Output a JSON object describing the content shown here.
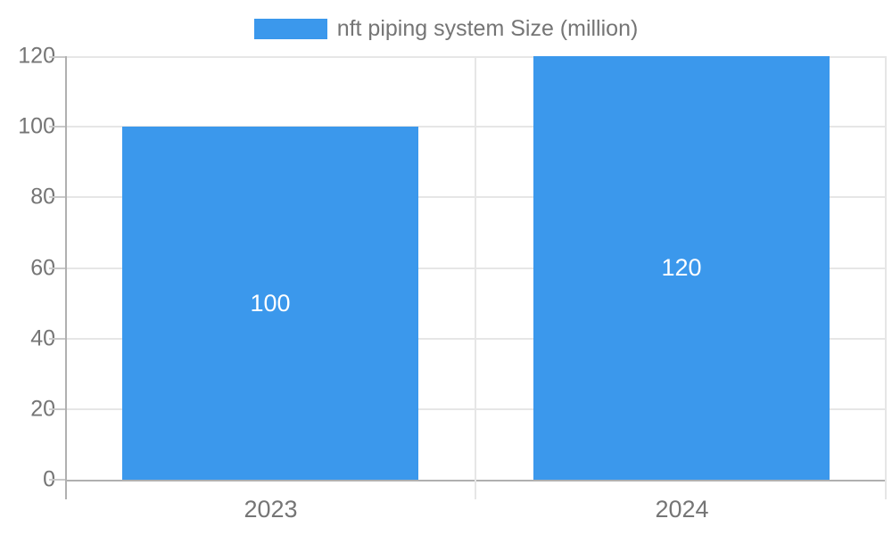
{
  "chart_data": {
    "type": "bar",
    "title": "",
    "categories": [
      "2023",
      "2024"
    ],
    "series": [
      {
        "name": "nft piping system Size (million)",
        "values": [
          100,
          120
        ],
        "data_labels": [
          "100",
          "120"
        ],
        "color": "#3b98ec"
      }
    ],
    "xlabel": "",
    "ylabel": "",
    "ylim": [
      0,
      120
    ],
    "ytick_step": 20,
    "yticks": [
      "0",
      "20",
      "40",
      "60",
      "80",
      "100",
      "120"
    ],
    "grid": true,
    "legend_position": "top-center"
  },
  "colors": {
    "background": "#ffffff",
    "bar_fill": "#3b98ec",
    "axis_label_text": "#757575",
    "legend_text": "#757575",
    "bar_label_text": "#ffffff",
    "gridline": "#e6e6e6",
    "axis_line": "#b0b0b0",
    "tick": "#c9c9c9"
  }
}
